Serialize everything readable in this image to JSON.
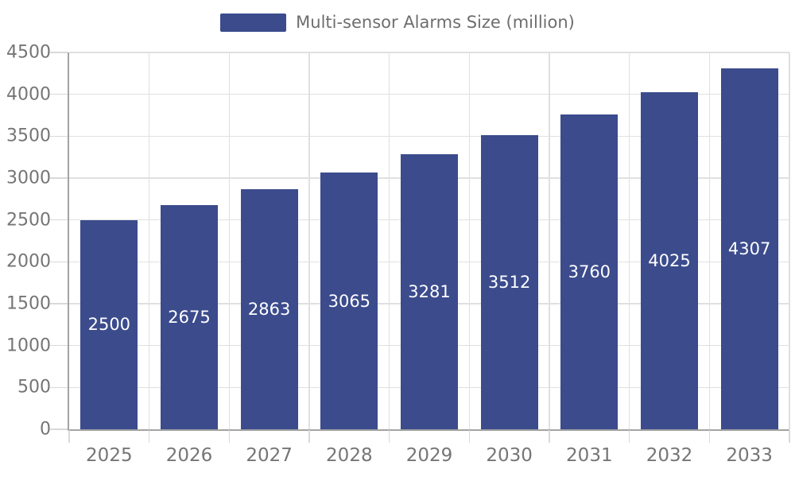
{
  "legend": {
    "label": "Multi-sensor Alarms Size (million)",
    "swatch_color": "#3b4b8c"
  },
  "chart_data": {
    "type": "bar",
    "title": "",
    "xlabel": "",
    "ylabel": "",
    "categories": [
      "2025",
      "2026",
      "2027",
      "2028",
      "2029",
      "2030",
      "2031",
      "2032",
      "2033"
    ],
    "series": [
      {
        "name": "Multi-sensor Alarms Size (million)",
        "values": [
          2500,
          2675,
          2863,
          3065,
          3281,
          3512,
          3760,
          4025,
          4307
        ]
      }
    ],
    "data_labels_shown": true,
    "ylim": [
      0,
      4500
    ],
    "ytick_step": 500,
    "yticks": [
      "0",
      "500",
      "1000",
      "1500",
      "2000",
      "2500",
      "3000",
      "3500",
      "4000",
      "4500"
    ],
    "grid": true,
    "legend_position": "top-center",
    "colors": {
      "bar": "#3b4b8c",
      "bar_label_text": "#ffffff",
      "axis_line": "#a3a3a3",
      "gridline": "#e0e0e0",
      "tick": "#d9d9d9",
      "axis_text": "#757575",
      "legend_text": "#6e6e6e"
    }
  }
}
